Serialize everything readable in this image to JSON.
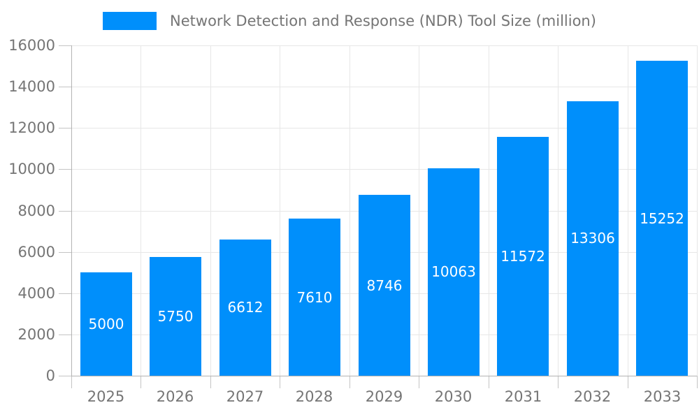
{
  "legend": {
    "label": "Network Detection and Response (NDR) Tool Size (million)",
    "swatch_color": "#008FFB"
  },
  "chart_data": {
    "type": "bar",
    "title": "",
    "categories": [
      "2025",
      "2026",
      "2027",
      "2028",
      "2029",
      "2030",
      "2031",
      "2032",
      "2033"
    ],
    "values": [
      5000,
      5750,
      6612,
      7610,
      8746,
      10063,
      11572,
      13306,
      15252
    ],
    "series_name": "Network Detection and Response (NDR) Tool Size (million)",
    "xlabel": "",
    "ylabel": "",
    "ylim": [
      0,
      16000
    ],
    "ytick_step": 2000,
    "ytick_labels": [
      "0",
      "2000",
      "4000",
      "6000",
      "8000",
      "10000",
      "12000",
      "14000",
      "16000"
    ],
    "grid": true,
    "legend_position": "top",
    "bar_color": "#008FFB",
    "value_label_color": "#ffffff",
    "axis_label_color": "#757575",
    "gridline_color": "#e7e7e7",
    "value_labels_shown": true,
    "value_label_position": "center-of-bar"
  }
}
